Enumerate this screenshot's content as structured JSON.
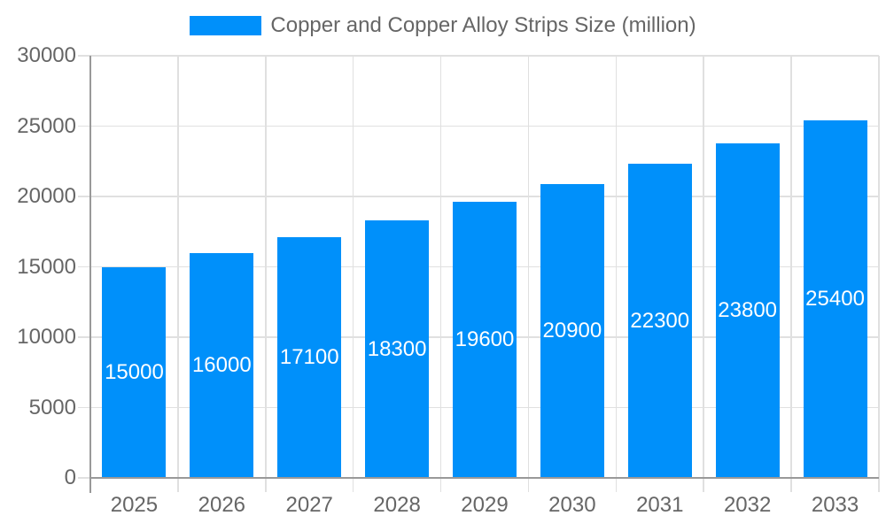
{
  "chart_data": {
    "type": "bar",
    "title": "Copper and Copper Alloy Strips Size (million)",
    "legend_position": "top",
    "categories": [
      "2025",
      "2026",
      "2027",
      "2028",
      "2029",
      "2030",
      "2031",
      "2032",
      "2033"
    ],
    "series": [
      {
        "name": "Copper and Copper Alloy Strips Size (million)",
        "values": [
          15000,
          16000,
          17100,
          18300,
          19600,
          20900,
          22300,
          23800,
          25400
        ]
      }
    ],
    "data_labels": {
      "visible": true,
      "position": "inside-middle"
    },
    "xlabel": "",
    "ylabel": "",
    "ylim": [
      0,
      30000
    ],
    "yticks": [
      0,
      5000,
      10000,
      15000,
      20000,
      25000,
      30000
    ],
    "grid": {
      "horizontal": true,
      "vertical": true
    },
    "colors": {
      "bar": "#0090fa",
      "data_label": "#ffffff",
      "axis_text": "#666666",
      "axis_line": "#999999",
      "grid": "#e0e0e0",
      "background": "#ffffff"
    }
  }
}
